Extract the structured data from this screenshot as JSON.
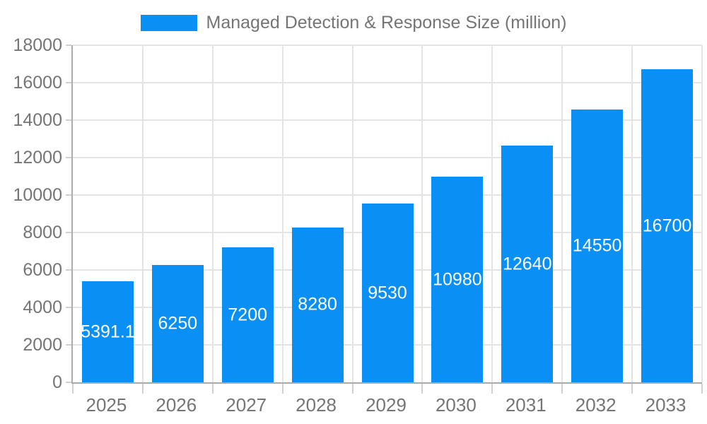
{
  "chart_data": {
    "type": "bar",
    "title": "",
    "legend": {
      "label": "Managed Detection & Response Size (million)",
      "position": "top-center"
    },
    "categories": [
      "2025",
      "2026",
      "2027",
      "2028",
      "2029",
      "2030",
      "2031",
      "2032",
      "2033"
    ],
    "series": [
      {
        "name": "Managed Detection & Response Size (million)",
        "values": [
          5391.1,
          6250,
          7200,
          8280,
          9530,
          10980,
          12640,
          14550,
          16700
        ],
        "value_labels": [
          "5391.1",
          "6250",
          "7200",
          "8280",
          "9530",
          "10980",
          "12640",
          "14550",
          "16700"
        ]
      }
    ],
    "xlabel": "",
    "ylabel": "",
    "ylim": [
      0,
      18000
    ],
    "y_ticks": [
      0,
      2000,
      4000,
      6000,
      8000,
      10000,
      12000,
      14000,
      16000,
      18000
    ],
    "y_tick_labels": [
      "0",
      "2000",
      "4000",
      "6000",
      "8000",
      "10000",
      "12000",
      "14000",
      "16000",
      "18000"
    ],
    "grid": "on",
    "value_label_position": "inside-center",
    "colors": {
      "bar": "#0a90f5",
      "value_label_text": "#ffffff",
      "axis_text": "#757575",
      "gridline": "#e4e4e4",
      "axis_line": "#ababab",
      "tick_mark": "#d0d0d0",
      "background": "#ffffff"
    }
  }
}
